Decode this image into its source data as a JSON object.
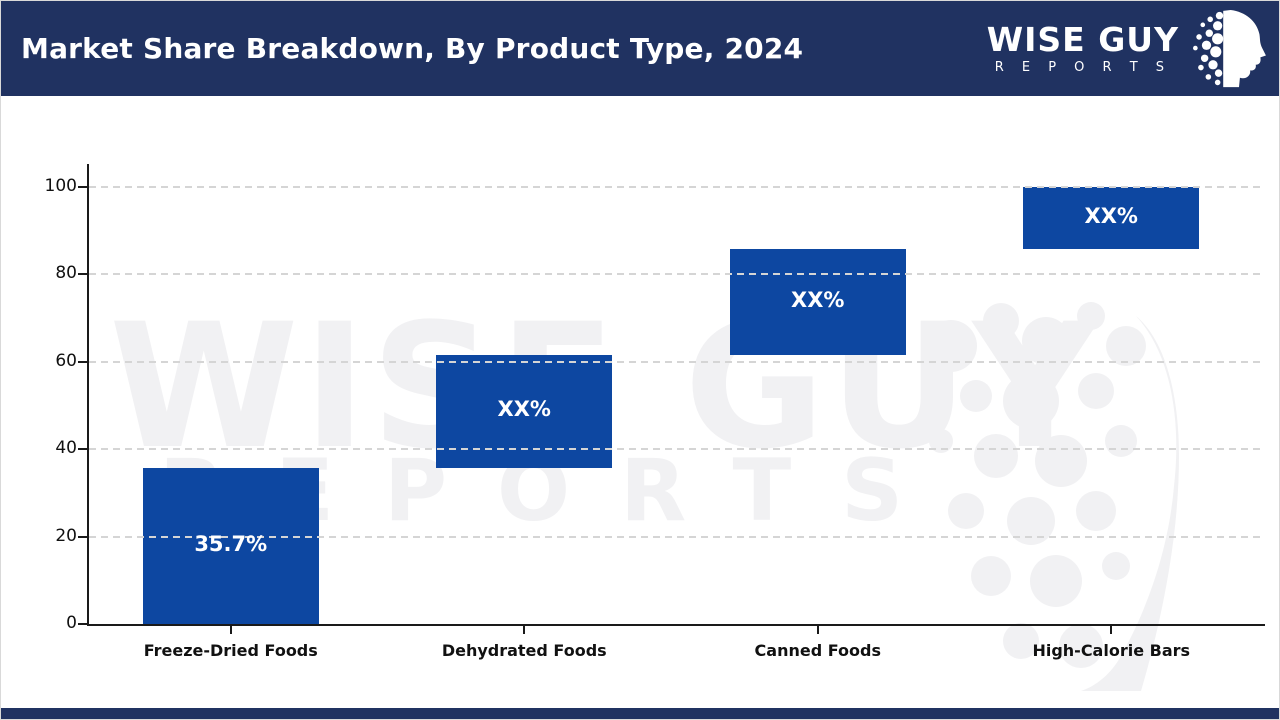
{
  "header": {
    "title": "Market Share Breakdown, By Product Type, 2024",
    "logo": {
      "line1": "WISE GUY",
      "line2": "REPORTS"
    }
  },
  "watermark": {
    "line1": "WISE GUY",
    "line2": "REPORTS"
  },
  "colors": {
    "header_navy": "#203261",
    "bar_blue": "#0d47a1",
    "gridline_gray": "#d5d5d5",
    "watermark_gray": "#f1f1f3",
    "axis_black": "#1a1a1a",
    "label_white": "#ffffff"
  },
  "chart_data": {
    "type": "bar",
    "subtype": "waterfall-floating-bars",
    "title": "Market Share Breakdown, By Product Type, 2024",
    "categories": [
      "Freeze-Dried Foods",
      "Dehydrated Foods",
      "Canned Foods",
      "High-Calorie Bars"
    ],
    "segments": [
      {
        "start": 0,
        "end": 35.7,
        "label": "35.7%"
      },
      {
        "start": 35.7,
        "end": 61.5,
        "label": "XX%"
      },
      {
        "start": 61.5,
        "end": 85.8,
        "label": "XX%"
      },
      {
        "start": 85.8,
        "end": 100,
        "label": "XX%"
      }
    ],
    "xlabel": "",
    "ylabel": "",
    "yticks": [
      0,
      20,
      40,
      60,
      80,
      100
    ],
    "ylim": [
      0,
      105.6
    ],
    "grid": "horizontal dashed, drawn over bars",
    "legend": "none",
    "bar_color": "#0d47a1"
  }
}
